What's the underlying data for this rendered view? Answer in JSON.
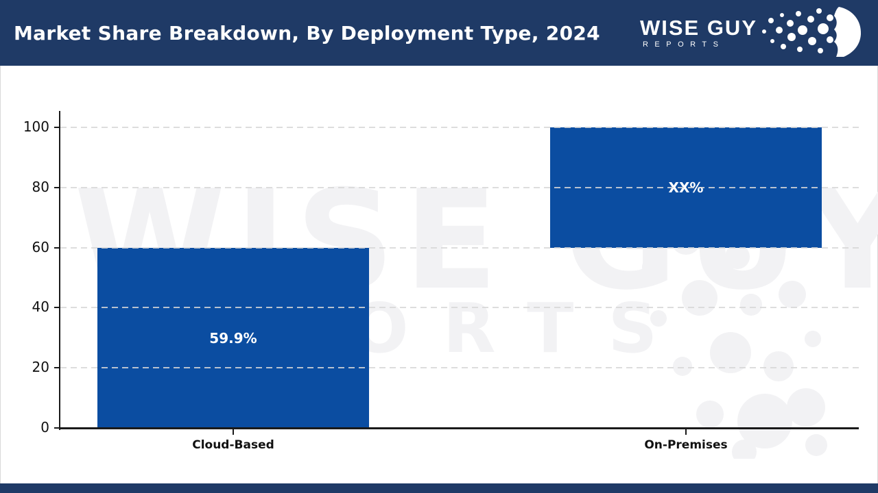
{
  "header": {
    "title": "Market Share Breakdown, By Deployment Type, 2024",
    "logo": {
      "name": "WISE GUY",
      "tagline": "REPORTS"
    }
  },
  "watermark": {
    "primary": "WISE GUY",
    "secondary": "REPORTS"
  },
  "chart_data": {
    "type": "bar",
    "title": "Market Share Breakdown, By Deployment Type, 2024",
    "categories": [
      "Cloud-Based",
      "On-Premises"
    ],
    "bars": [
      {
        "category": "Cloud-Based",
        "label": "59.9%",
        "start": 0,
        "end": 59.9
      },
      {
        "category": "On-Premises",
        "label": "XX%",
        "start": 60,
        "end": 100
      }
    ],
    "ylim": [
      0,
      100
    ],
    "yticks": [
      0,
      20,
      40,
      60,
      80,
      100
    ],
    "xlabel": "",
    "ylabel": "",
    "grid": "horizontal-dashed",
    "legend": "none",
    "bar_color": "#0b4da1"
  },
  "colors": {
    "header_bg": "#1f3a66",
    "footer_bg": "#1f3a66",
    "bar": "#0b4da1",
    "axis": "#1a1a1a",
    "gridline": "#d7d7d7",
    "watermark": "#f2f2f4",
    "text_on_dark": "#ffffff"
  }
}
